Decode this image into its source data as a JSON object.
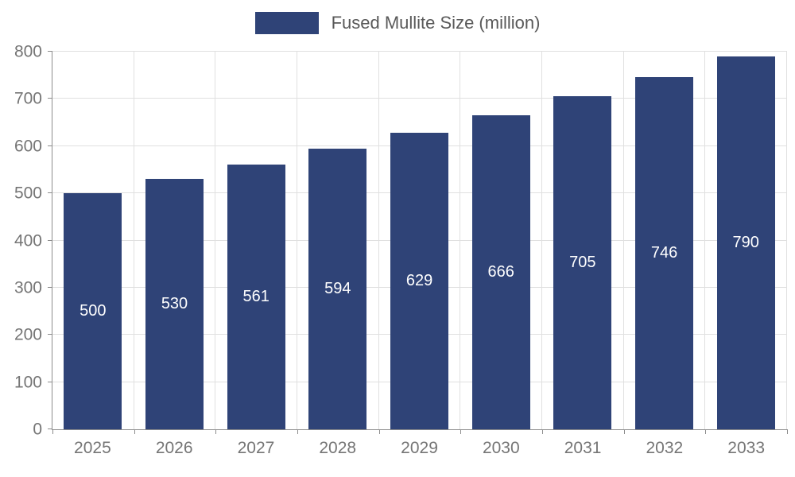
{
  "legend": {
    "label": "Fused Mullite Size (million)"
  },
  "chart_data": {
    "type": "bar",
    "title": "Fused Mullite Size (million)",
    "categories": [
      "2025",
      "2026",
      "2027",
      "2028",
      "2029",
      "2030",
      "2031",
      "2032",
      "2033"
    ],
    "values": [
      500,
      530,
      561,
      594,
      629,
      666,
      705,
      746,
      790
    ],
    "xlabel": "",
    "ylabel": "",
    "ylim": [
      0,
      800
    ],
    "ytick_step": 100,
    "yticks": [
      0,
      100,
      200,
      300,
      400,
      500,
      600,
      700,
      800
    ],
    "grid": true,
    "legend_position": "top-center",
    "bar_color": "#2f4377",
    "bar_label_color": "#ffffff",
    "axis_label_color": "#757575",
    "gridline_color": "#e0e0e0"
  }
}
